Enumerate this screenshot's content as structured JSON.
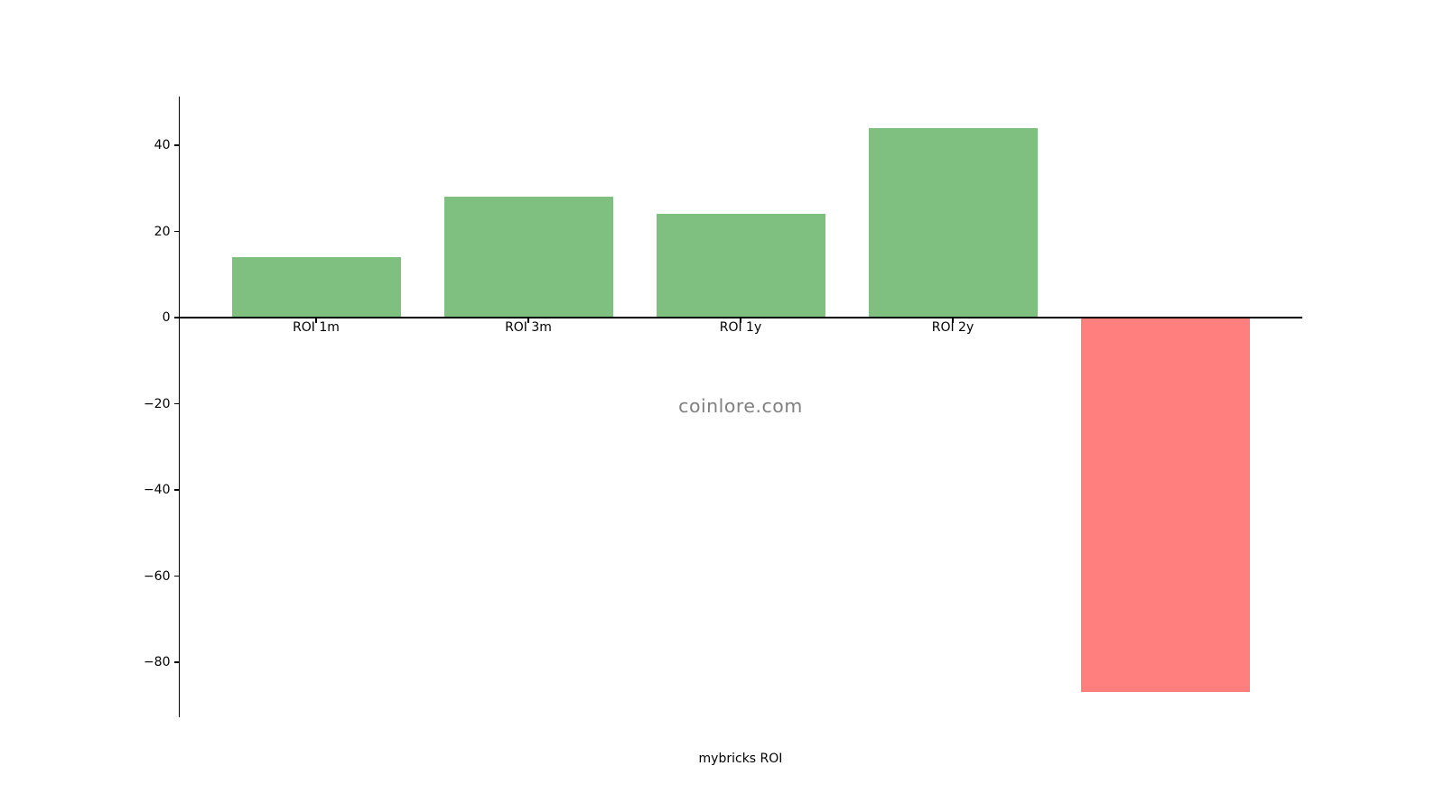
{
  "page": {
    "background": "#ffffff",
    "watermark": "coinlore.com",
    "title": "mybricks ROI"
  },
  "colors": {
    "positive_bar": "#7fbf7f",
    "negative_bar": "#ff7f7f",
    "axis_line": "#000000",
    "tick_label": "#000000",
    "watermark_text": "#808080"
  },
  "chart_data": {
    "type": "bar",
    "title": "mybricks ROI",
    "title_position": "bottom",
    "categories": [
      "ROI 1m",
      "ROI 3m",
      "ROI 1y",
      "ROI 2y",
      ""
    ],
    "values": [
      14,
      28,
      24,
      44,
      -87
    ],
    "bar_colors": [
      "#7fbf7f",
      "#7fbf7f",
      "#7fbf7f",
      "#7fbf7f",
      "#ff7f7f"
    ],
    "y_ticks": [
      40,
      20,
      0,
      -20,
      -40,
      -60,
      -80
    ],
    "ylim": [
      -92.5,
      51.5
    ],
    "xlabel": "",
    "ylabel": "",
    "grid": false,
    "legend": "none",
    "watermark": "coinlore.com"
  }
}
